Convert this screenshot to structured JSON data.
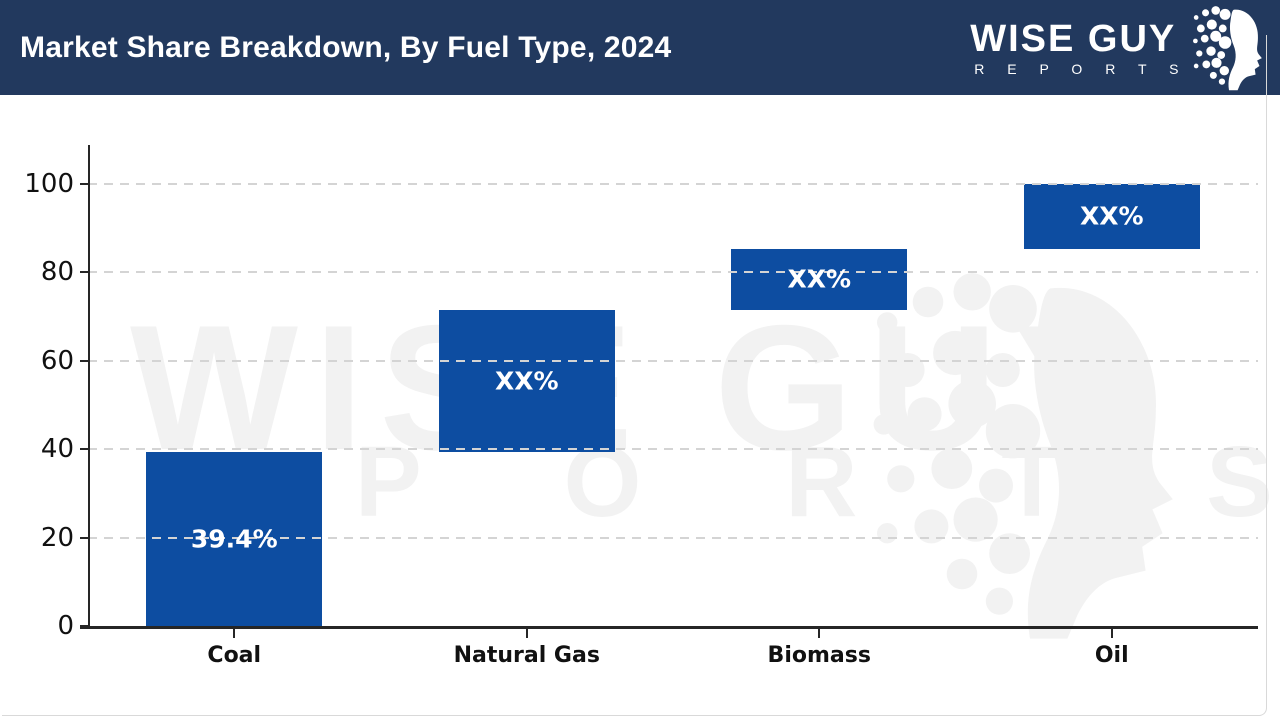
{
  "header": {
    "title": "Market Share Breakdown, By Fuel Type, 2024",
    "logo": {
      "line1": "WISE GUY",
      "line2": "R E P O R T S",
      "icon": "dotted-head-profile"
    }
  },
  "watermark": {
    "line1": "WISE GUY",
    "line2": "P O R T S",
    "icon": "dotted-head-profile-watermark"
  },
  "colors": {
    "header_bg": "#22395e",
    "bar_fill": "#0d4da1",
    "bar_label_text": "#ffffff",
    "grid_line": "#d4d4d4",
    "axis_line": "#262626",
    "tick_text": "#111111",
    "watermark": "#f2f2f2",
    "title_text": "#ffffff"
  },
  "chart_data": {
    "type": "bar",
    "subtype": "waterfall",
    "title": "Market Share Breakdown, By Fuel Type, 2024",
    "categories": [
      "Coal",
      "Natural Gas",
      "Biomass",
      "Oil"
    ],
    "segments": [
      {
        "category": "Coal",
        "start": 0,
        "end": 39.4,
        "label": "39.4%"
      },
      {
        "category": "Natural Gas",
        "start": 39.4,
        "end": 71.6,
        "label": "XX%"
      },
      {
        "category": "Biomass",
        "start": 71.6,
        "end": 85.4,
        "label": "XX%"
      },
      {
        "category": "Oil",
        "start": 85.4,
        "end": 100,
        "label": "XX%"
      }
    ],
    "yticks": [
      0,
      20,
      40,
      60,
      80,
      100
    ],
    "ylim": [
      0,
      109
    ],
    "xlabel": "",
    "ylabel": "",
    "grid": "horizontal-dashed-over-bars",
    "legend": "none"
  }
}
